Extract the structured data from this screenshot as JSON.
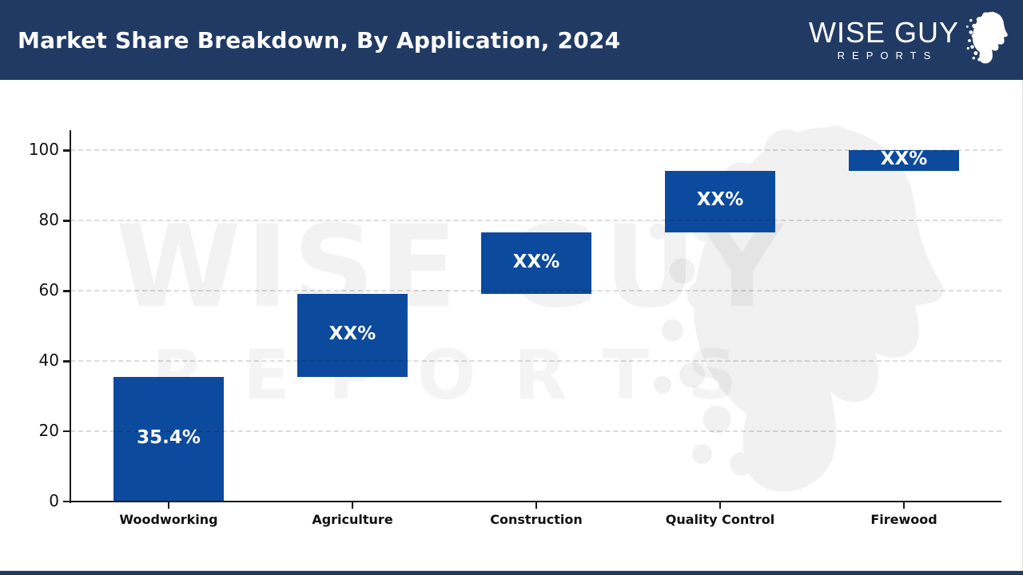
{
  "header": {
    "title": "Market Share Breakdown, By Application, 2024",
    "logo": {
      "name": "WISE GUY",
      "subname": "REPORTS"
    }
  },
  "watermark": {
    "line1": "WISE GUY",
    "line2": "REPORTS"
  },
  "colors": {
    "header_bg": "#213a64",
    "footer_bg": "#213a64",
    "bar_blue": "#0c4a9e",
    "axis": "#1a1a1a",
    "grid": "rgba(0,0,0,0.14)"
  },
  "chart_data": {
    "type": "bar",
    "subtype": "floating-waterfall",
    "title": "Market Share Breakdown, By Application, 2024",
    "categories": [
      "Woodworking",
      "Agriculture",
      "Construction",
      "Quality Control",
      "Firewood"
    ],
    "bars": [
      {
        "category": "Woodworking",
        "start": 0,
        "end": 35.4,
        "label": "35.4%"
      },
      {
        "category": "Agriculture",
        "start": 35.4,
        "end": 59.1,
        "label": "XX%"
      },
      {
        "category": "Construction",
        "start": 59.1,
        "end": 76.7,
        "label": "XX%"
      },
      {
        "category": "Quality Control",
        "start": 76.7,
        "end": 94.3,
        "label": "XX%"
      },
      {
        "category": "Firewood",
        "start": 94.3,
        "end": 100,
        "label": "XX%"
      }
    ],
    "yticks": [
      0,
      20,
      40,
      60,
      80,
      100
    ],
    "ylim": [
      0,
      105.8
    ],
    "xlabel": "",
    "ylabel": "",
    "grid": "horizontal-dashed",
    "grid_above_bars": true,
    "legend": false,
    "bar_color": "#0c4a9e",
    "bar_label_color": "#ffffff"
  }
}
